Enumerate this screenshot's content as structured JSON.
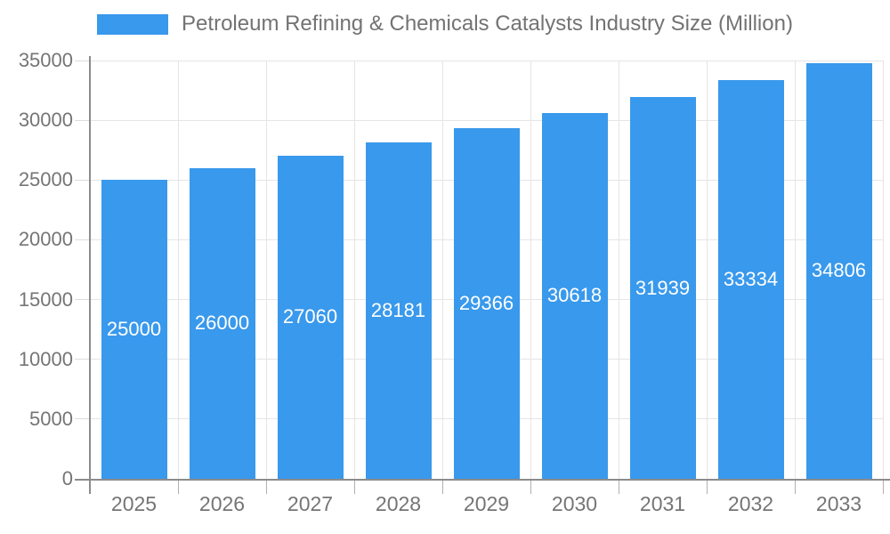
{
  "chart_data": {
    "type": "bar",
    "title": "Petroleum Refining & Chemicals Catalysts Industry Size (Million)",
    "legend": [
      "Petroleum Refining & Chemicals Catalysts Industry Size (Million)"
    ],
    "legend_position": "top",
    "categories": [
      "2025",
      "2026",
      "2027",
      "2028",
      "2029",
      "2030",
      "2031",
      "2032",
      "2033"
    ],
    "series": [
      {
        "name": "Petroleum Refining & Chemicals Catalysts Industry Size (Million)",
        "values": [
          25000,
          26000,
          27060,
          28181,
          29366,
          30618,
          31939,
          33334,
          34806
        ]
      }
    ],
    "bar_value_labels_shown": true,
    "xlabel": "",
    "ylabel": "",
    "ylim": [
      0,
      35000
    ],
    "ytick_interval": 5000,
    "yticks": [
      0,
      5000,
      10000,
      15000,
      20000,
      25000,
      30000,
      35000
    ],
    "grid": true,
    "colors": {
      "bar": "#3999EC",
      "bar_label": "#FFFFFF",
      "axis_line": "#8C8C8C",
      "tick_label": "#757575",
      "gridline": "#E5E5E5",
      "y_tick_mark": "#DCDCDC",
      "x_tick_mark": "#B0B0B0",
      "legend_text": "#737373",
      "background": "#FFFFFF"
    }
  }
}
